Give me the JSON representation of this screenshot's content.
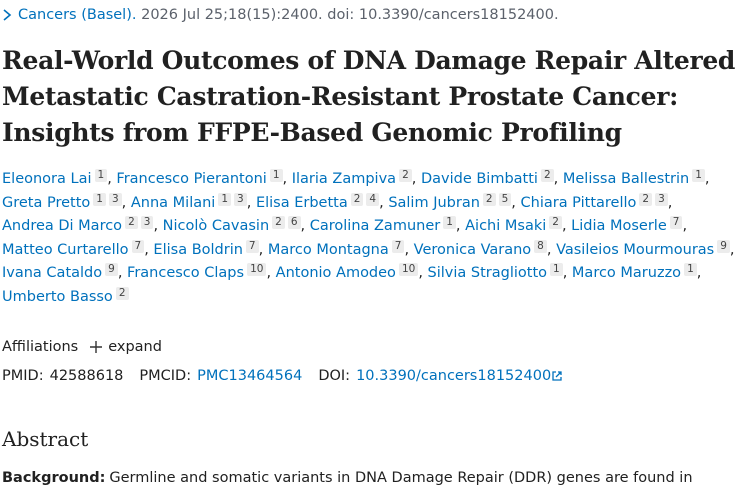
{
  "citation": {
    "journal": "Cancers (Basel).",
    "details": "2026 Jul 25;18(15):2400. doi: 10.3390/cancers18152400."
  },
  "title": "Real-World Outcomes of DNA Damage Repair Altered Metastatic Castration-Resistant Prostate Cancer: Insights from FFPE-Based Genomic Profiling",
  "authors": {
    "separator": ",",
    "list": [
      {
        "name": "Eleonora Lai",
        "affiliations": [
          "1"
        ]
      },
      {
        "name": "Francesco Pierantoni",
        "affiliations": [
          "1"
        ]
      },
      {
        "name": "Ilaria Zampiva",
        "affiliations": [
          "2"
        ]
      },
      {
        "name": "Davide Bimbatti",
        "affiliations": [
          "2"
        ]
      },
      {
        "name": "Melissa Ballestrin",
        "affiliations": [
          "1"
        ]
      },
      {
        "name": "Greta Pretto",
        "affiliations": [
          "1",
          "3"
        ]
      },
      {
        "name": "Anna Milani",
        "affiliations": [
          "1",
          "3"
        ]
      },
      {
        "name": "Elisa Erbetta",
        "affiliations": [
          "2",
          "4"
        ]
      },
      {
        "name": "Salim Jubran",
        "affiliations": [
          "2",
          "5"
        ]
      },
      {
        "name": "Chiara Pittarello",
        "affiliations": [
          "2",
          "3"
        ]
      },
      {
        "name": "Andrea Di Marco",
        "affiliations": [
          "2",
          "3"
        ]
      },
      {
        "name": "Nicolò Cavasin",
        "affiliations": [
          "2",
          "6"
        ]
      },
      {
        "name": "Carolina Zamuner",
        "affiliations": [
          "1"
        ]
      },
      {
        "name": "Aichi Msaki",
        "affiliations": [
          "2"
        ]
      },
      {
        "name": "Lidia Moserle",
        "affiliations": [
          "7"
        ]
      },
      {
        "name": "Matteo Curtarello",
        "affiliations": [
          "7"
        ]
      },
      {
        "name": "Elisa Boldrin",
        "affiliations": [
          "7"
        ]
      },
      {
        "name": "Marco Montagna",
        "affiliations": [
          "7"
        ]
      },
      {
        "name": "Veronica Varano",
        "affiliations": [
          "8"
        ]
      },
      {
        "name": "Vasileios Mourmouras",
        "affiliations": [
          "9"
        ]
      },
      {
        "name": "Ivana Cataldo",
        "affiliations": [
          "9"
        ]
      },
      {
        "name": "Francesco Claps",
        "affiliations": [
          "10"
        ]
      },
      {
        "name": "Antonio Amodeo",
        "affiliations": [
          "10"
        ]
      },
      {
        "name": "Silvia Stragliotto",
        "affiliations": [
          "1"
        ]
      },
      {
        "name": "Marco Maruzzo",
        "affiliations": [
          "1"
        ]
      },
      {
        "name": "Umberto Basso",
        "affiliations": [
          "2"
        ]
      }
    ]
  },
  "affiliations": {
    "label": "Affiliations",
    "toggle": "expand"
  },
  "identifiers": {
    "pmid_label": "PMID:",
    "pmid": "42588618",
    "pmcid_label": "PMCID:",
    "pmcid": "PMC13464564",
    "doi_label": "DOI:",
    "doi": "10.3390/cancers18152400"
  },
  "abstract": {
    "heading": "Abstract",
    "label": "Background:",
    "text": "Germline and somatic variants in DNA Damage Repair (DDR) genes are found in"
  }
}
